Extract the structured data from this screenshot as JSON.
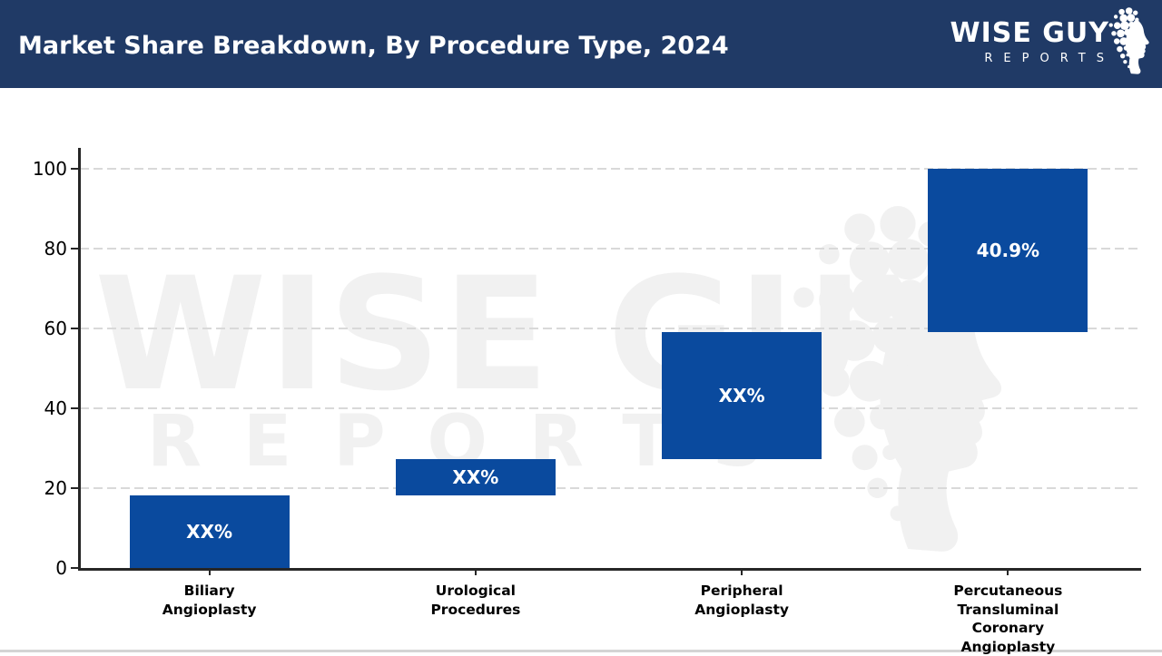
{
  "header": {
    "title": "Market Share Breakdown, By Procedure Type, 2024",
    "logo": {
      "line1": "WISE GUY",
      "line2": "REPORTS"
    }
  },
  "watermark": {
    "line1": "WISE GUY",
    "line2": "REPORTS"
  },
  "chart_data": {
    "type": "bar",
    "subtype": "waterfall",
    "title": "Market Share Breakdown, By Procedure Type, 2024",
    "categories": [
      "Biliary Angioplasty",
      "Urological Procedures",
      "Peripheral Angioplasty",
      "Percutaneous Transluminal Coronary Angioplasty"
    ],
    "segments": [
      {
        "category_lines": [
          "Biliary",
          "Angioplasty"
        ],
        "start": 0,
        "end": 18.2,
        "value": 18.2,
        "label": "XX%"
      },
      {
        "category_lines": [
          "Urological",
          "Procedures"
        ],
        "start": 18.2,
        "end": 27.3,
        "value": 9.1,
        "label": "XX%"
      },
      {
        "category_lines": [
          "Peripheral",
          "Angioplasty"
        ],
        "start": 27.3,
        "end": 59.1,
        "value": 31.8,
        "label": "XX%"
      },
      {
        "category_lines": [
          "Percutaneous",
          "Transluminal",
          "Coronary",
          "Angioplasty"
        ],
        "start": 59.1,
        "end": 100,
        "value": 40.9,
        "label": "40.9%"
      }
    ],
    "xlabel": "",
    "ylabel": "",
    "ylim": [
      0,
      100
    ],
    "yticks": [
      0,
      20,
      40,
      60,
      80,
      100
    ],
    "grid": "horizontal-dashed",
    "legend": "none",
    "colors": {
      "bar": "#0a4a9e",
      "header_bg": "#203a66",
      "grid": "#d9d9d9",
      "axis": "#262626",
      "bar_label": "#ffffff",
      "watermark": "#f1f1f1"
    }
  }
}
